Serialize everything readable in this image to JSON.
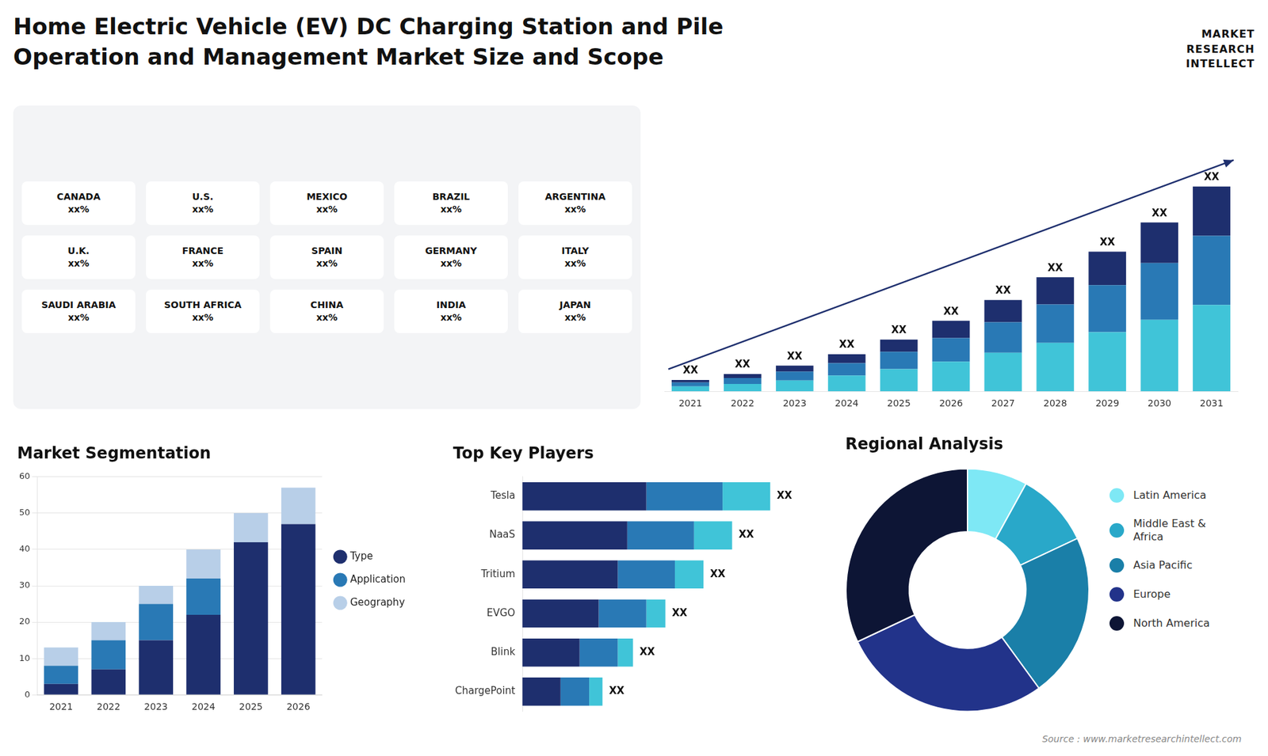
{
  "chart_data": [
    {
      "type": "bar",
      "title": "Home Electric Vehicle (EV) DC Charging Station and Pile\nOperation and Management Market Size and Scope",
      "stacked": true,
      "categories": [
        "2021",
        "2022",
        "2023",
        "2024",
        "2025",
        "2026",
        "2027",
        "2028",
        "2029",
        "2030",
        "2031"
      ],
      "series": [
        {
          "color": "#40c4d8",
          "values": [
            1.0,
            1.5,
            2.2,
            3.2,
            4.5,
            6.0,
            7.8,
            9.8,
            12.0,
            14.5,
            17.5
          ]
        },
        {
          "color": "#2979b5",
          "values": [
            0.8,
            1.2,
            1.8,
            2.5,
            3.5,
            4.8,
            6.2,
            7.8,
            9.5,
            11.5,
            14.0
          ]
        },
        {
          "color": "#1e2f6e",
          "values": [
            0.5,
            0.8,
            1.2,
            1.8,
            2.5,
            3.5,
            4.5,
            5.5,
            6.8,
            8.2,
            10.0
          ]
        }
      ],
      "ylim": [
        0,
        56.025
      ],
      "tick_labels": "x",
      "grid": false,
      "annotations": [
        "XX",
        "XX",
        "XX",
        "XX",
        "XX",
        "XX",
        "XX",
        "XX",
        "XX",
        "XX",
        "XX"
      ]
    },
    {
      "type": "map",
      "annotations": [
        "CANADA\nxx%",
        "U.S.\nxx%",
        "MEXICO\nxx%",
        "BRAZIL\nxx%",
        "ARGENTINA\nxx%",
        "U.K.\nxx%",
        "FRANCE\nxx%",
        "SPAIN\nxx%",
        "GERMANY\nxx%",
        "ITALY\nxx%",
        "SAUDI ARABIA\nxx%",
        "SOUTH AFRICA\nxx%",
        "CHINA\nxx%",
        "INDIA\nxx%",
        "JAPAN\nxx%"
      ]
    },
    {
      "type": "bar",
      "title": "Market Segmentation",
      "stacked": true,
      "categories": [
        "2021",
        "2022",
        "2023",
        "2024",
        "2025",
        "2026"
      ],
      "series": [
        {
          "name": "Type",
          "color": "#1e2f6e",
          "values": [
            3,
            7,
            15,
            22,
            42,
            47
          ]
        },
        {
          "name": "Application",
          "color": "#2979b5",
          "values": [
            5,
            8,
            10,
            10,
            0,
            0
          ]
        },
        {
          "name": "Geography",
          "color": "#b8cfe8",
          "values": [
            5,
            5,
            5,
            8,
            8,
            10
          ]
        }
      ],
      "ylim": [
        0,
        60
      ],
      "yticks": [
        0,
        10,
        20,
        30,
        40,
        50,
        60
      ],
      "grid": true,
      "legend": "right"
    },
    {
      "type": "bar",
      "title": "Top Key Players",
      "orientation": "horizontal",
      "stacked": true,
      "categories": [
        "Tesla",
        "NaaS",
        "Tritium",
        "EVGO",
        "Blink",
        "ChargePoint"
      ],
      "series": [
        {
          "color": "#1e2f6e",
          "values": [
            6.5,
            5.5,
            5.0,
            4.0,
            3.0,
            2.0
          ]
        },
        {
          "color": "#2979b5",
          "values": [
            4.0,
            3.5,
            3.0,
            2.5,
            2.0,
            1.5
          ]
        },
        {
          "color": "#40c4d8",
          "values": [
            2.5,
            2.0,
            1.5,
            1.0,
            0.8,
            0.7
          ]
        }
      ],
      "xlim": [
        0,
        15
      ],
      "tick_labels": "y",
      "grid": false,
      "annotations": [
        "XX",
        "XX",
        "XX",
        "XX",
        "XX",
        "XX"
      ]
    },
    {
      "type": "doughnut",
      "title": "Regional Analysis",
      "categories": [
        "Latin America",
        "Middle East &\nAfrica",
        "Asia Pacific",
        "Europe",
        "North America"
      ],
      "values": [
        8,
        10,
        22,
        28,
        32
      ],
      "colors": [
        "#7ee8f5",
        "#29a8c9",
        "#1a7fa8",
        "#22338a",
        "#0d1535"
      ],
      "legend": "right"
    },
    {
      "type": "logo",
      "annotations": [
        "MARKET",
        "RESEARCH",
        "INTELLECT"
      ]
    },
    {
      "type": "note",
      "annotations": [
        "Source : www.marketresearchintellect.com"
      ]
    }
  ]
}
